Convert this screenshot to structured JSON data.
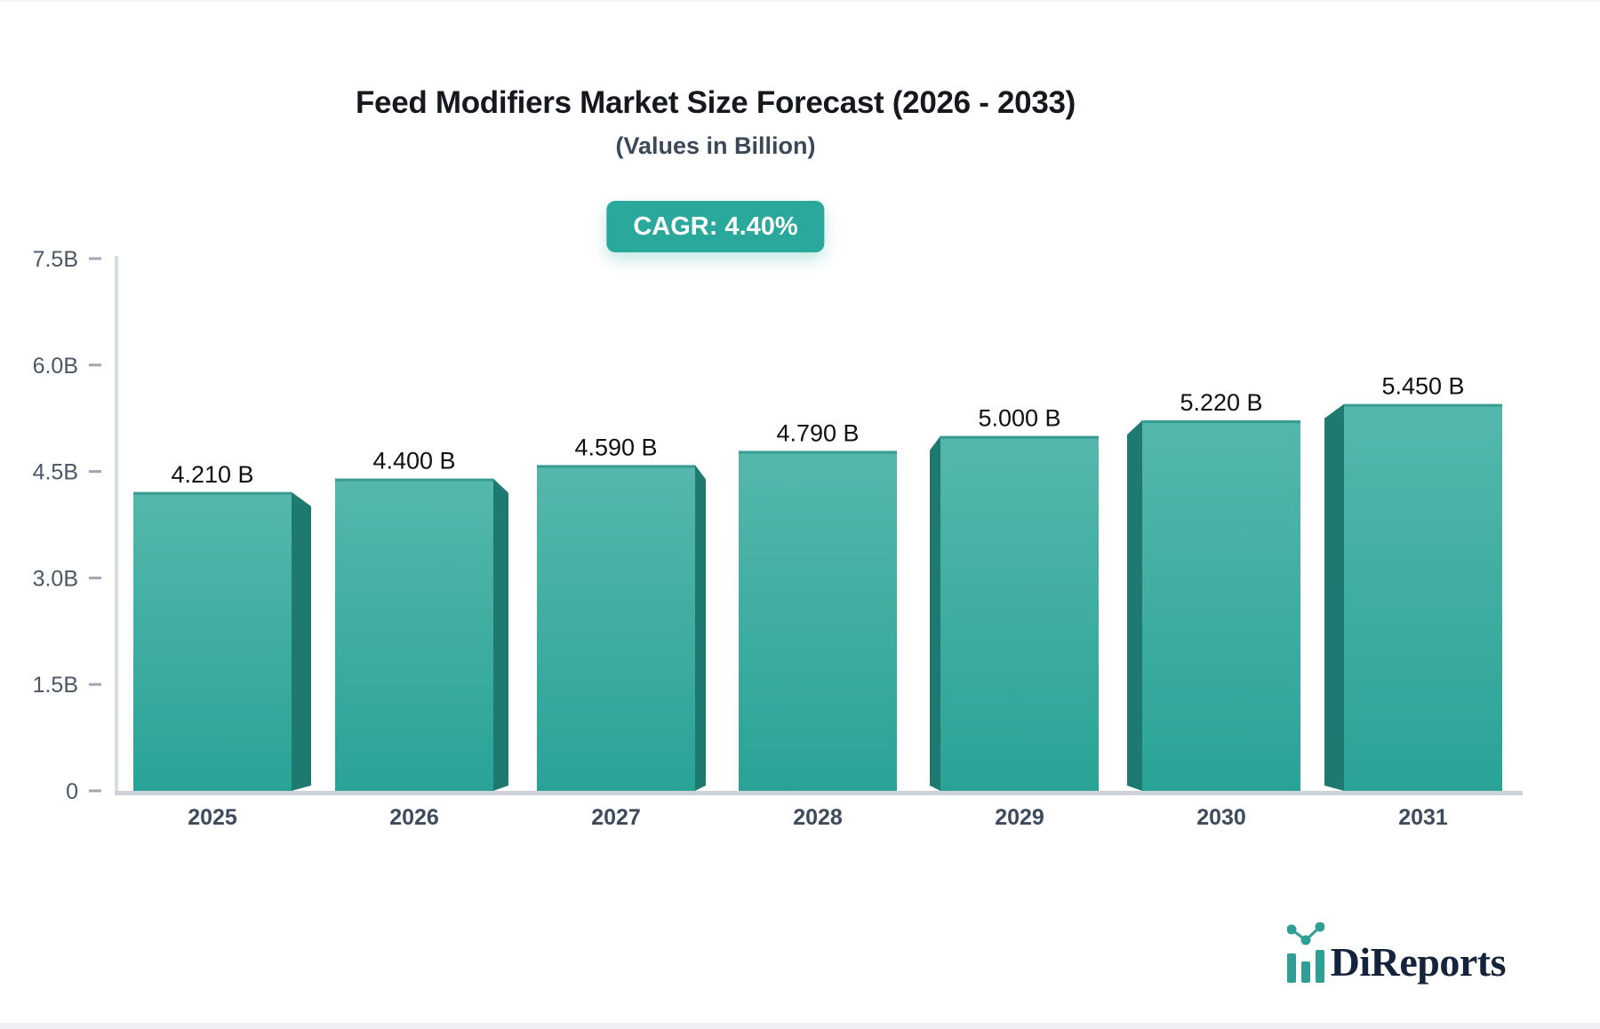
{
  "header": {
    "title": "Feed Modifiers Market Size Forecast (2026 - 2033)",
    "subtitle": "(Values in Billion)",
    "cagr_badge": "CAGR: 4.40%"
  },
  "chart_data": {
    "type": "bar",
    "title": "Feed Modifiers Market Size Forecast (2026 - 2033)",
    "subtitle": "(Values in Billion)",
    "categories": [
      "2025",
      "2026",
      "2027",
      "2028",
      "2029",
      "2030",
      "2031"
    ],
    "values": [
      4.21,
      4.4,
      4.59,
      4.79,
      5.0,
      5.22,
      5.45
    ],
    "value_labels": [
      "4.210 B",
      "4.400 B",
      "4.590 B",
      "4.790 B",
      "5.000 B",
      "5.220 B",
      "5.450 B"
    ],
    "y_ticks": [
      {
        "label": "0",
        "value": 0
      },
      {
        "label": "1.5B",
        "value": 1.5
      },
      {
        "label": "3.0B",
        "value": 3.0
      },
      {
        "label": "4.5B",
        "value": 4.5
      },
      {
        "label": "6.0B",
        "value": 6.0
      },
      {
        "label": "7.5B",
        "value": 7.5
      }
    ],
    "ylim": [
      0,
      7.5
    ],
    "xlabel": "",
    "ylabel": "",
    "grid": false,
    "legend": null,
    "colors": {
      "bar_face_top": "#55b7ac",
      "bar_face_bottom": "#29a396",
      "bar_side": "#1e7a70",
      "bar_top_edge": "#35998d",
      "axis_line": "#d9dce1",
      "baseline": "#cdd2d9",
      "tick_dash": "#9fa8b2",
      "tick_text": "#4b5765",
      "category_text": "#3d4b5c",
      "value_text": "#101010",
      "badge_bg": "#2aa89b"
    }
  },
  "branding": {
    "logo_text": "DiReports",
    "logo_icon": "bar-chart-logo-icon",
    "logo_color": "#2f9f96",
    "logo_text_color": "#16233c"
  }
}
